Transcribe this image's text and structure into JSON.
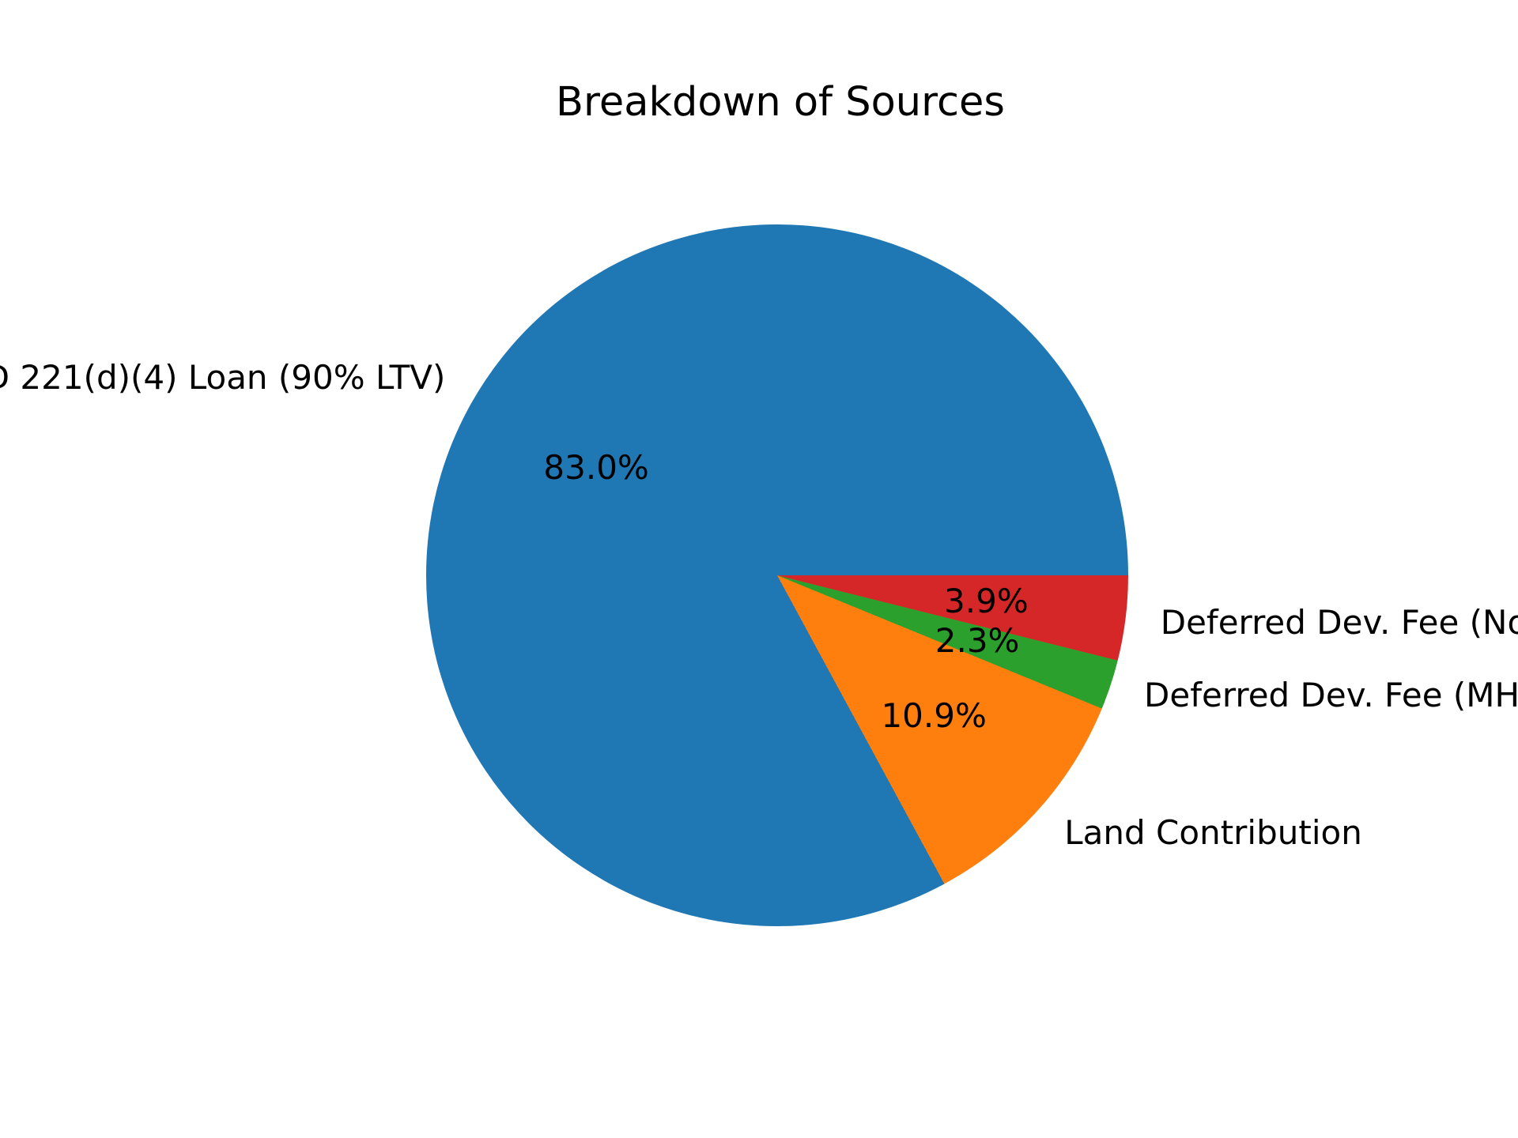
{
  "title": "Breakdown of Sources",
  "background_color": "#ffffff",
  "text_color": "#000000",
  "chart_data": {
    "type": "pie",
    "title": "Breakdown of Sources",
    "legend": "none",
    "start_angle_deg_from_east": 0,
    "direction": "counterclockwise",
    "pct_distance": 0.6,
    "label_distance": 1.1,
    "slices": [
      {
        "label": "D 221(d)(4) Loan (90% LTV)",
        "value": 83.0,
        "pct_label": "83.0%",
        "color": "#1f77b4",
        "label_clipped_at_edge": true
      },
      {
        "label": "Land Contribution",
        "value": 10.9,
        "pct_label": "10.9%",
        "color": "#ff7f0e",
        "label_clipped_at_edge": false
      },
      {
        "label": "Deferred Dev. Fee (MH",
        "value": 2.3,
        "pct_label": "2.3%",
        "color": "#2ca02c",
        "label_clipped_at_edge": true
      },
      {
        "label": "Deferred Dev. Fee (No",
        "value": 3.9,
        "pct_label": "3.9%",
        "color": "#d62728",
        "label_clipped_at_edge": true
      }
    ]
  }
}
